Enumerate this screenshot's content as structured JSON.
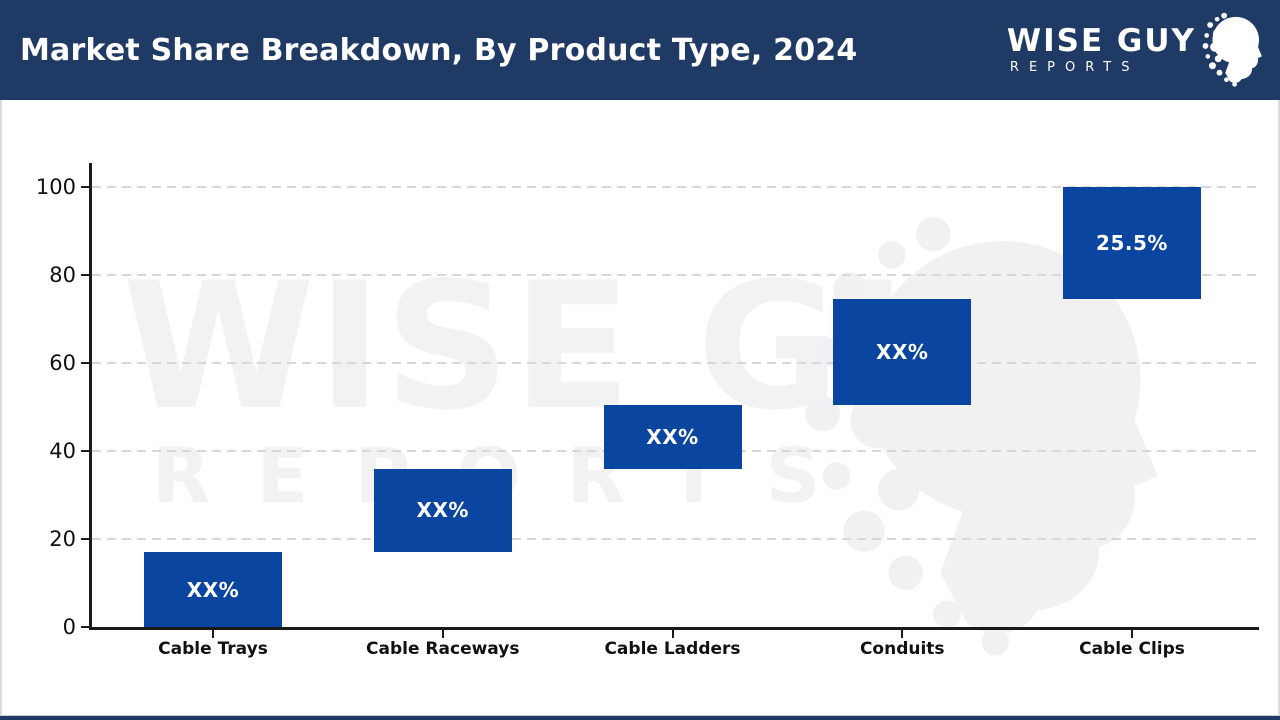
{
  "header": {
    "title": "Market Share Breakdown, By Product Type, 2024",
    "logo": {
      "line1": "WISE GUY",
      "line2": "REPORTS"
    }
  },
  "watermark": {
    "line1": "WISE GUY",
    "line2": "REPORTS"
  },
  "chart_data": {
    "type": "bar",
    "subtype": "waterfall",
    "title": "Market Share Breakdown, By Product Type, 2024",
    "categories": [
      "Cable Trays",
      "Cable Raceways",
      "Cable Ladders",
      "Conduits",
      "Cable Clips"
    ],
    "series": [
      {
        "name": "Market share (%)",
        "starts": [
          0,
          17,
          36,
          50.5,
          74.5
        ],
        "ends": [
          17,
          36,
          50.5,
          74.5,
          100
        ],
        "values": [
          17,
          19,
          14.5,
          24,
          25.5
        ],
        "labels": [
          "XX%",
          "XX%",
          "XX%",
          "XX%",
          "25.5%"
        ]
      }
    ],
    "xlabel": "",
    "ylabel": "",
    "yticks": [
      0,
      20,
      40,
      60,
      80,
      100
    ],
    "ylim": [
      0,
      105
    ],
    "grid": "horizontal-dashed",
    "legend": "none",
    "bar_color": "#0a46a0",
    "bar_label_color": "#ffffff"
  },
  "colors": {
    "header_bg": "#203a66",
    "bar": "#0a46a0",
    "axis": "#1a1a1a",
    "gridline": "#d7d7d7",
    "watermark": "#f1f1f3"
  }
}
